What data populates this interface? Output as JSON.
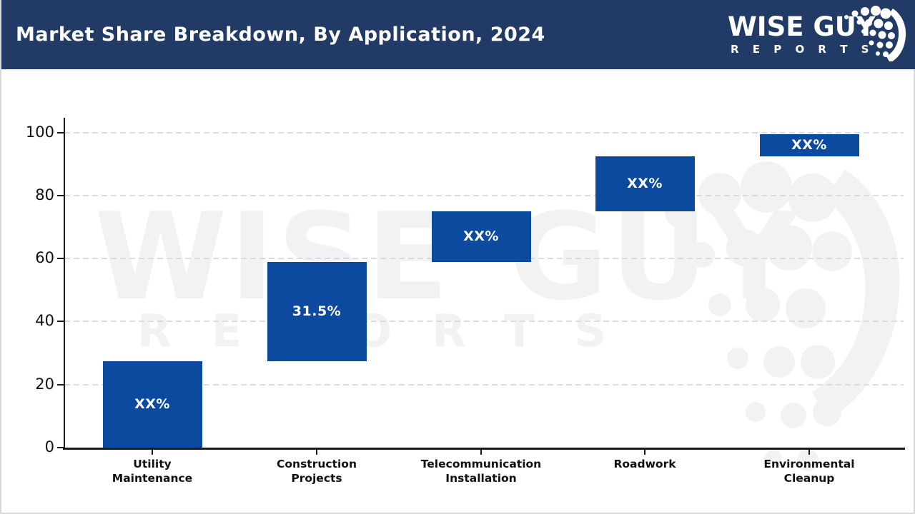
{
  "header": {
    "title": "Market Share Breakdown, By Application, 2024",
    "background_color": "#213a66",
    "brand": {
      "line1": "WISE GUY",
      "line2": "R E P O R T S"
    }
  },
  "watermark": {
    "line1": "WISE GUY",
    "line2": "REPORTS"
  },
  "chart_data": {
    "type": "bar",
    "subtype": "floating-segment-waterfall",
    "title": "Market Share Breakdown, By Application, 2024",
    "categories": [
      "Utility Maintenance",
      "Construction Projects",
      "Telecommunication Installation",
      "Roadwork",
      "Environmental Cleanup"
    ],
    "category_lines": [
      [
        "Utility",
        "Maintenance"
      ],
      [
        "Construction",
        "Projects"
      ],
      [
        "Telecommunication",
        "Installation"
      ],
      [
        "Roadwork"
      ],
      [
        "Environmental",
        "Cleanup"
      ]
    ],
    "bars": [
      {
        "category": "Utility Maintenance",
        "start": 0,
        "end": 27.5,
        "value": 27.5,
        "label": "XX%"
      },
      {
        "category": "Construction Projects",
        "start": 27.5,
        "end": 59,
        "value": 31.5,
        "label": "31.5%"
      },
      {
        "category": "Telecommunication Installation",
        "start": 59,
        "end": 75,
        "value": 16,
        "label": "XX%"
      },
      {
        "category": "Roadwork",
        "start": 75,
        "end": 92.5,
        "value": 17.5,
        "label": "XX%"
      },
      {
        "category": "Environmental Cleanup",
        "start": 92.5,
        "end": 99.5,
        "value": 7,
        "label": "XX%"
      }
    ],
    "yticks": [
      0,
      20,
      40,
      60,
      80,
      100
    ],
    "ylim": [
      0,
      105
    ],
    "xlabel": "",
    "ylabel": "",
    "grid": "horizontal-dashed",
    "legend": "none",
    "bar_color": "#0b4a9e",
    "bar_label_color": "#ffffff",
    "gridline_color": "#dcdcdc",
    "axis_color": "#1a1a1a"
  }
}
